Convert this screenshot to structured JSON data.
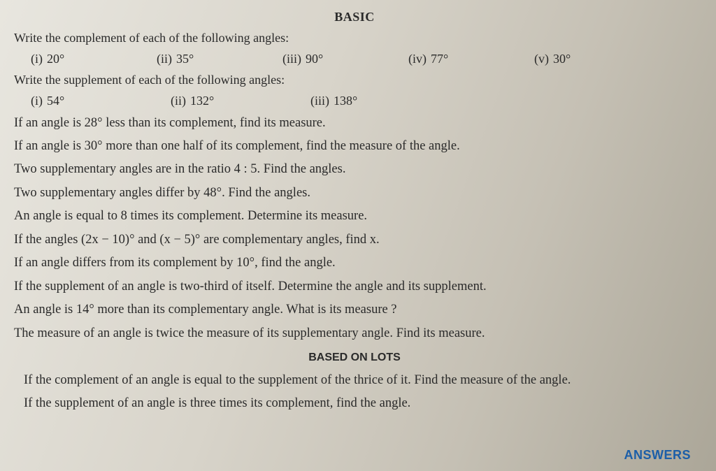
{
  "headings": {
    "basic": "BASIC",
    "lots": "BASED ON LOTS",
    "answers": "ANSWERS"
  },
  "q1": {
    "prompt": "Write the complement of each of the following angles:",
    "items": [
      {
        "num": "(i)",
        "val": "20°"
      },
      {
        "num": "(ii)",
        "val": "35°"
      },
      {
        "num": "(iii)",
        "val": "90°"
      },
      {
        "num": "(iv)",
        "val": "77°"
      },
      {
        "num": "(v)",
        "val": "30°"
      }
    ]
  },
  "q2": {
    "prompt": "Write the supplement of each of the following angles:",
    "items": [
      {
        "num": "(i)",
        "val": "54°"
      },
      {
        "num": "(ii)",
        "val": "132°"
      },
      {
        "num": "(iii)",
        "val": "138°"
      }
    ]
  },
  "paras": [
    "If an angle is 28° less than its complement, find its measure.",
    "If an angle is 30° more than one half of its complement, find the measure of the angle.",
    "Two supplementary angles are in the ratio 4 : 5. Find the angles.",
    "Two supplementary angles differ by 48°. Find the angles.",
    "An angle is equal to 8 times its complement. Determine its measure.",
    "If the angles (2x − 10)° and (x − 5)° are complementary angles, find x.",
    "If an angle differs from its complement by 10°, find the angle.",
    "If the supplement of an angle is two-third of itself. Determine the angle and its supplement.",
    "An angle is 14° more than its complementary angle. What is its measure ?",
    "The measure of an angle is twice the measure of its supplementary angle. Find its measure."
  ],
  "lots_paras": [
    "If the complement of an angle is equal to the supplement of the thrice of it. Find the measure of the angle.",
    "If the supplement of an angle is three times its complement, find the angle."
  ]
}
